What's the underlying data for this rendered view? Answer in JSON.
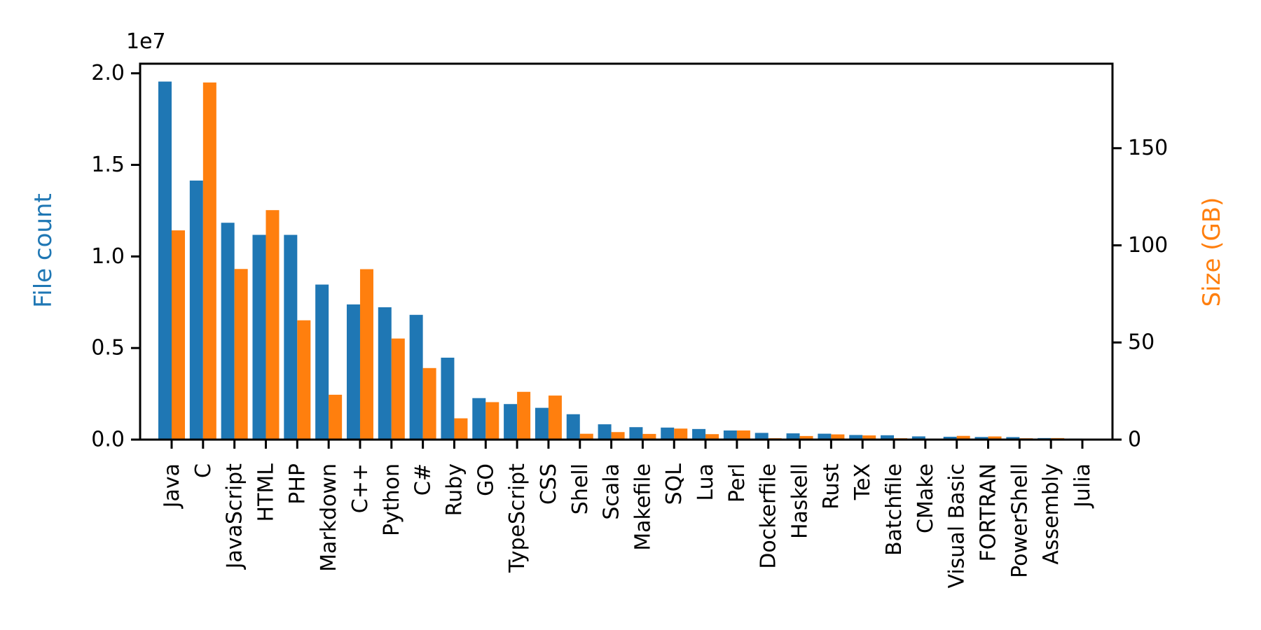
{
  "figure": {
    "background": "#ffffff",
    "offset_text": "1e7"
  },
  "chart_data": {
    "type": "bar",
    "title": "",
    "grid": false,
    "legend": "none",
    "categories": [
      "Java",
      "C",
      "JavaScript",
      "HTML",
      "PHP",
      "Markdown",
      "C++",
      "Python",
      "C#",
      "Ruby",
      "GO",
      "TypeScript",
      "CSS",
      "Shell",
      "Scala",
      "Makefile",
      "SQL",
      "Lua",
      "Perl",
      "Dockerfile",
      "Haskell",
      "Rust",
      "TeX",
      "Batchfile",
      "CMake",
      "Visual Basic",
      "FORTRAN",
      "PowerShell",
      "Assembly",
      "Julia"
    ],
    "series": [
      {
        "name": "File count",
        "axis": "left",
        "color": "#1f77b4",
        "values": [
          19548190,
          14143113,
          11839883,
          11178557,
          11177610,
          8464626,
          7380520,
          7226626,
          6811652,
          4473331,
          2265436,
          1940406,
          1734406,
          1385648,
          835755,
          679430,
          656671,
          578554,
          497949,
          366505,
          340623,
          322431,
          251015,
          236945,
          175282,
          155652,
          142038,
          136846,
          82905,
          58317
        ]
      },
      {
        "name": "Size (GB)",
        "axis": "right",
        "color": "#ff7f0e",
        "values": [
          107.7,
          183.83,
          87.82,
          118.12,
          61.41,
          23.09,
          87.73,
          52.03,
          36.83,
          10.95,
          19.28,
          24.59,
          22.67,
          3.01,
          3.87,
          2.92,
          5.67,
          2.81,
          4.7,
          0.71,
          1.85,
          2.68,
          2.15,
          0.7,
          0.54,
          1.91,
          1.62,
          0.69,
          0.78,
          0.29
        ]
      }
    ],
    "left_axis": {
      "label": "File count",
      "label_color": "#1f77b4",
      "offset_text": "1e7",
      "tick_labels": [
        "0.0",
        "0.5",
        "1.0",
        "1.5",
        "2.0"
      ],
      "tick_values": [
        0,
        5000000,
        10000000,
        15000000,
        20000000
      ],
      "ylim": [
        0,
        20524000
      ]
    },
    "right_axis": {
      "label": "Size (GB)",
      "label_color": "#ff7f0e",
      "tick_labels": [
        "0",
        "50",
        "100",
        "150"
      ],
      "tick_values": [
        0,
        50,
        100,
        150
      ],
      "ylim": [
        0,
        193.5
      ]
    },
    "x_axis": {
      "tick_label_rotation": 90
    }
  }
}
